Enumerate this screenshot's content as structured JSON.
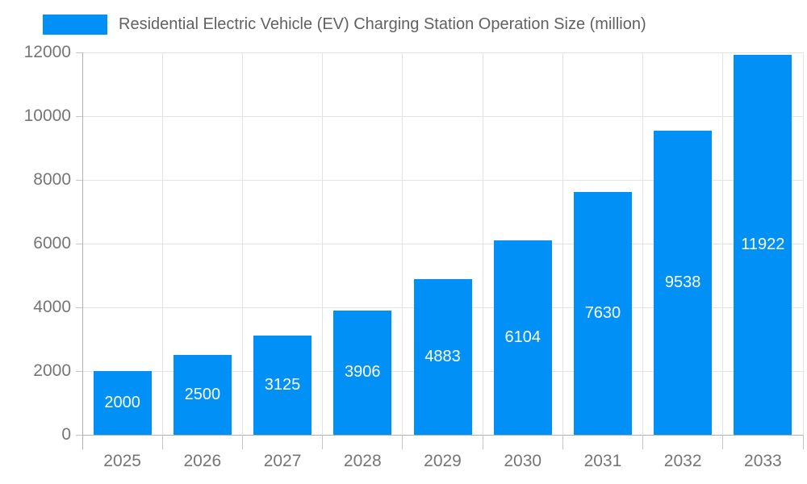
{
  "chart_data": {
    "type": "bar",
    "title": "Residential Electric Vehicle (EV) Charging Station Operation Size (million)",
    "categories": [
      "2025",
      "2026",
      "2027",
      "2028",
      "2029",
      "2030",
      "2031",
      "2032",
      "2033"
    ],
    "values": [
      2000,
      2500,
      3125,
      3906,
      4883,
      6104,
      7630,
      9538,
      11922
    ],
    "xlabel": "",
    "ylabel": "",
    "ylim": [
      0,
      12000
    ],
    "y_ticks": [
      0,
      2000,
      4000,
      6000,
      8000,
      10000,
      12000
    ],
    "grid": "horizontal and vertical gridlines on",
    "legend_position": "top-left",
    "legend_entries": [
      "Residential Electric Vehicle (EV) Charging Station Operation Size (million)"
    ],
    "bar_labels_shown": true,
    "colors": {
      "bar": "#0190f5",
      "bar_label_text": "#ffffff",
      "axis_tick_label": "#757575",
      "legend_text": "#616161",
      "gridline": "#e3e3e3",
      "axis_line": "#b0b0b0",
      "tick_mark": "#c6c6c6",
      "background": "#ffffff"
    }
  }
}
